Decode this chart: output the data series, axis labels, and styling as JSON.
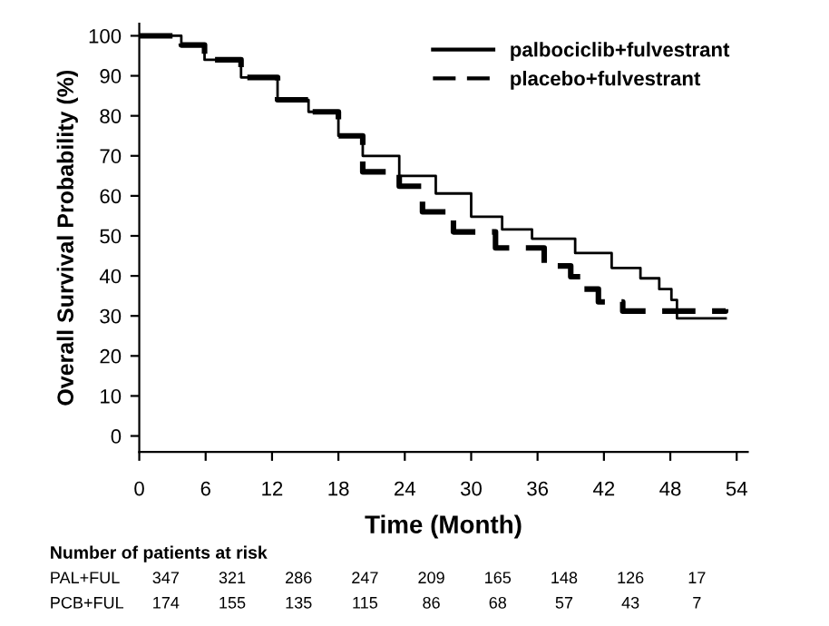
{
  "chart_data": {
    "type": "step",
    "xlabel": "Time (Month)",
    "ylabel": "Overall Survival Probability (%)",
    "xlim": [
      0,
      55
    ],
    "xticks": [
      0,
      6,
      12,
      18,
      24,
      30,
      36,
      42,
      48,
      54
    ],
    "ylim": [
      -4,
      103
    ],
    "yticks": [
      0,
      10,
      20,
      30,
      40,
      50,
      60,
      70,
      80,
      90,
      100
    ],
    "grid": false,
    "legend": "top right",
    "marker": "none",
    "series": [
      {
        "name": "palbociclib+fulvestrant",
        "color": "#000000",
        "line_style": "solid",
        "x": [
          0,
          0.5,
          3.8,
          5.9,
          9.2,
          12.5,
          15.3,
          18,
          20.2,
          23.5,
          26.8,
          30,
          32.8,
          35.5,
          39.4,
          42.7,
          45.3,
          47,
          48.1,
          48.6,
          53
        ],
        "values": [
          100,
          100,
          97.7,
          94,
          89.6,
          84,
          81,
          75,
          70,
          65,
          60.6,
          54.8,
          51.6,
          49.3,
          45.7,
          42,
          39.4,
          36.7,
          34,
          29.4,
          29.4
        ]
      },
      {
        "name": "placebo+fulvestrant",
        "color": "#000000",
        "line_style": "dashed",
        "x": [
          0,
          0.5,
          3.8,
          5.9,
          9.2,
          12.5,
          15.3,
          18,
          20.2,
          23.5,
          25.6,
          28.4,
          32.2,
          36.6,
          39,
          39.9,
          41.5,
          43.7,
          48.6,
          53
        ],
        "values": [
          100,
          100,
          97.7,
          94,
          89.6,
          84,
          81,
          75,
          66,
          62.4,
          56,
          51,
          47,
          42.5,
          39.8,
          36.7,
          33.5,
          31.2,
          31.2,
          31.7
        ]
      }
    ],
    "annotations": [
      "Number of patients at risk",
      "PAL+FUL",
      "347",
      "321",
      "286",
      "247",
      "209",
      "165",
      "148",
      "126",
      "17",
      "PCB+FUL",
      "174",
      "155",
      "135",
      "115",
      "86",
      "68",
      "57",
      "43",
      "7"
    ]
  }
}
